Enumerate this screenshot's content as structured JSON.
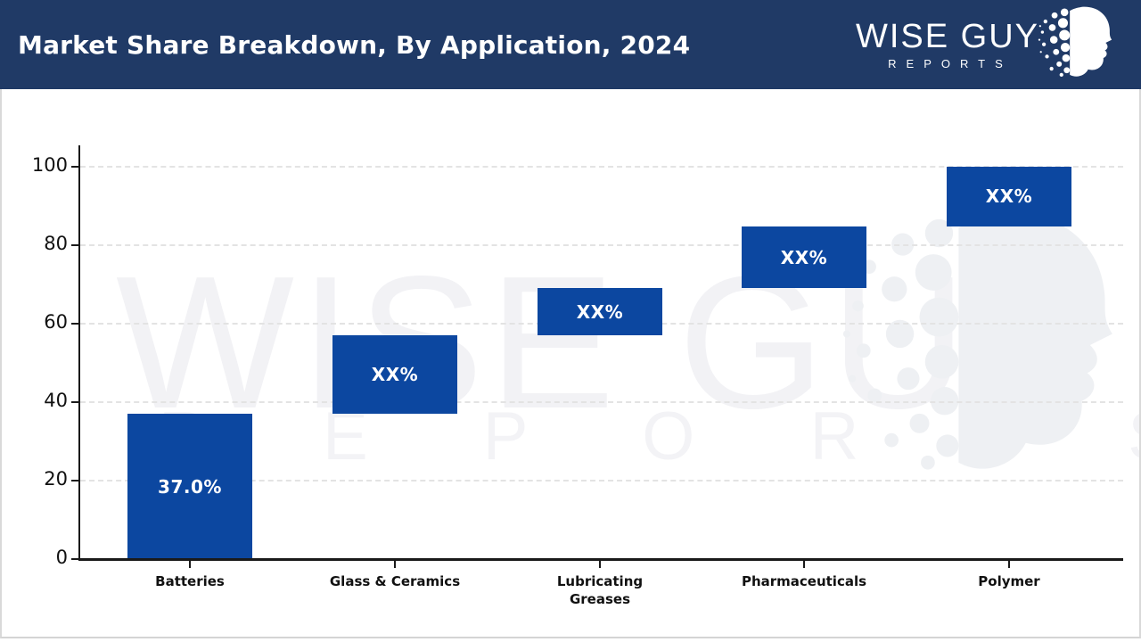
{
  "header": {
    "title": "Market Share Breakdown, By Application, 2024",
    "logo": {
      "line1": "WISE GUY",
      "line2": "REPORTS"
    }
  },
  "watermark": {
    "line1": "WISE GUY",
    "line2": "R E P O R T S"
  },
  "colors": {
    "header_bg": "#203A66",
    "bar": "#0C47A0",
    "bar_label": "#FFFFFF",
    "grid": "#E3E3E3",
    "axis": "#1A1A1A",
    "watermark": "#F2F2F5"
  },
  "chart_data": {
    "type": "bar",
    "variant": "floating-waterfall",
    "title": "Market Share Breakdown, By Application, 2024",
    "categories": [
      "Batteries",
      "Glass & Ceramics",
      "Lubricating Greases",
      "Pharmaceuticals",
      "Polymer"
    ],
    "categories_display": [
      "Batteries",
      "Glass & Ceramics",
      "Lubricating\nGreases",
      "Pharmaceuticals",
      "Polymer"
    ],
    "segments": [
      {
        "category": "Batteries",
        "start": 0,
        "end": 37,
        "label": "37.0%"
      },
      {
        "category": "Glass & Ceramics",
        "start": 37,
        "end": 57,
        "label": "XX%"
      },
      {
        "category": "Lubricating Greases",
        "start": 57,
        "end": 69,
        "label": "XX%"
      },
      {
        "category": "Pharmaceuticals",
        "start": 69,
        "end": 84.8,
        "label": "XX%"
      },
      {
        "category": "Polymer",
        "start": 84.8,
        "end": 100,
        "label": "XX%"
      }
    ],
    "ylim": [
      0,
      100
    ],
    "yticks": [
      0,
      20,
      40,
      60,
      80,
      100
    ],
    "xlabel": "",
    "ylabel": "",
    "grid": "horizontal-dashed",
    "legend": "none"
  }
}
